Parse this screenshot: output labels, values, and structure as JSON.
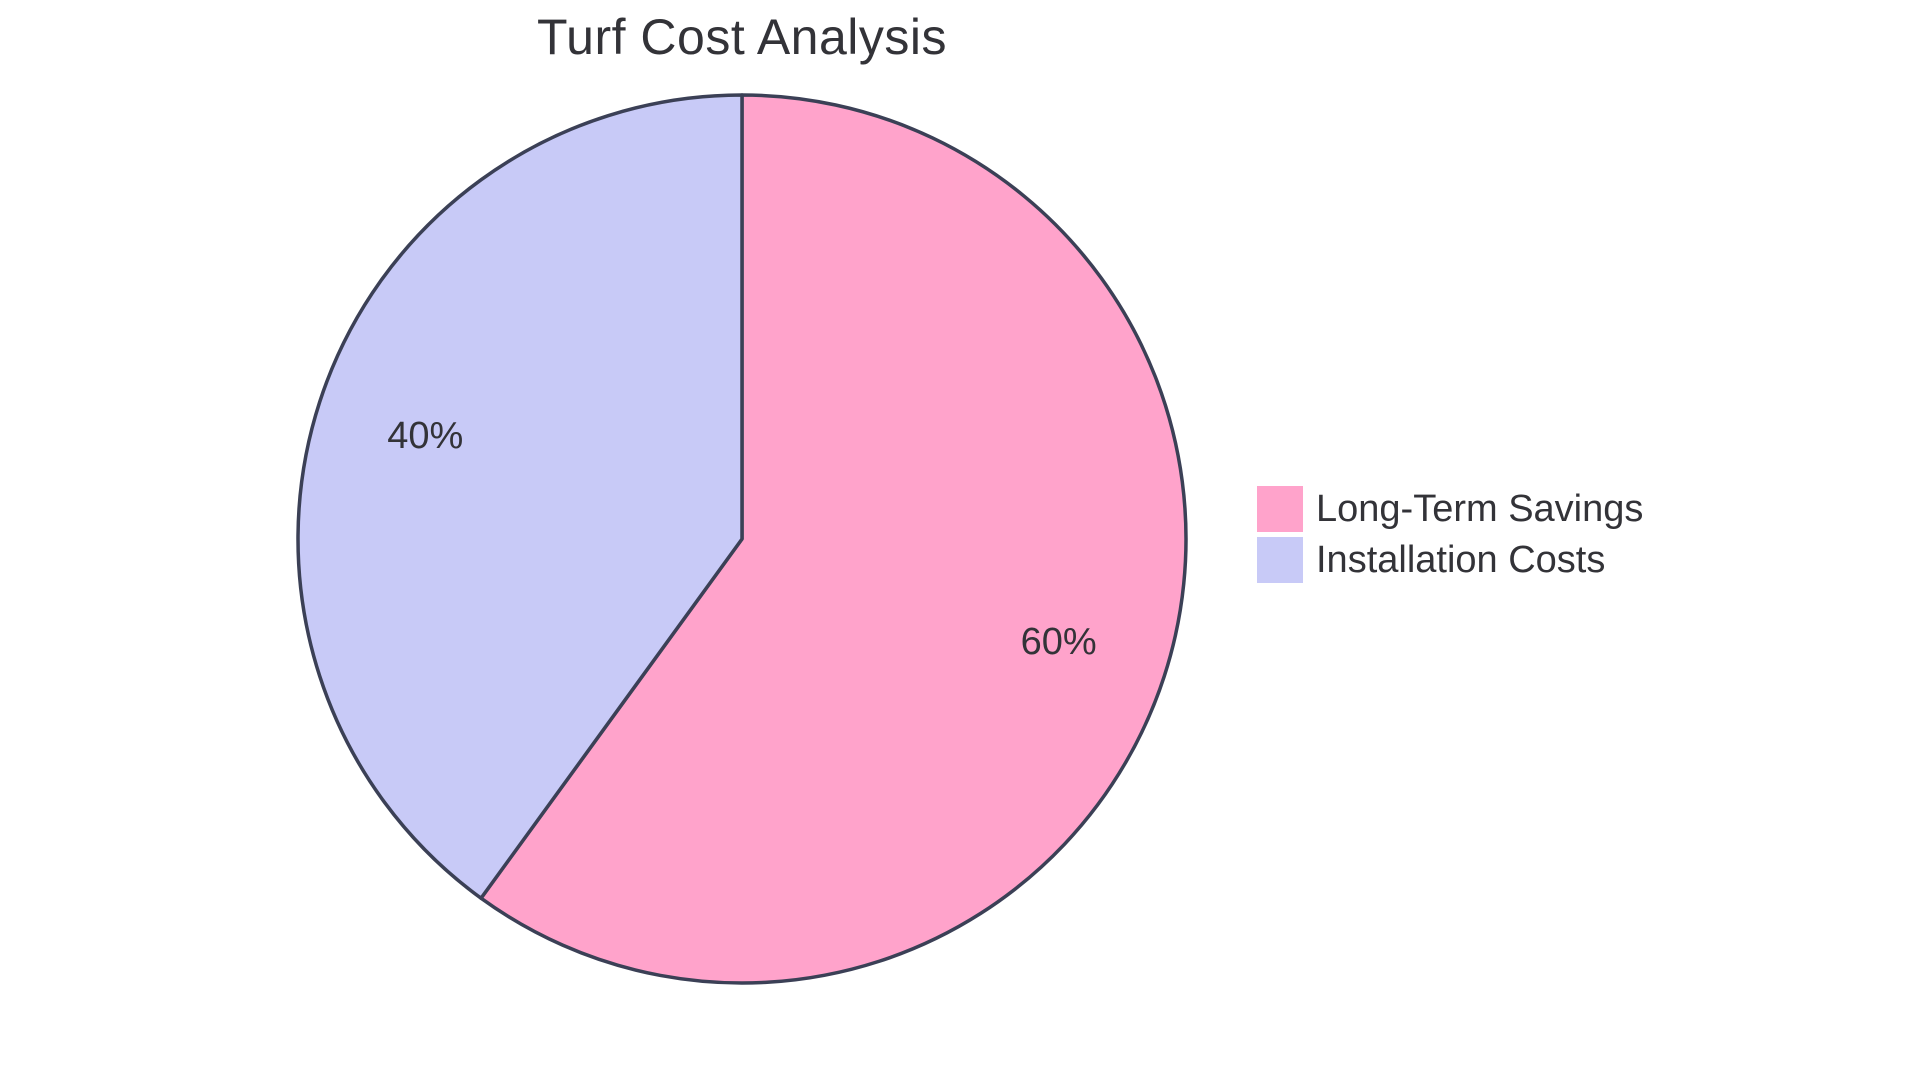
{
  "page": {
    "background": "#FFFFFF"
  },
  "chart_data": {
    "type": "pie",
    "title": "Turf Cost Analysis",
    "labels": [
      "Long-Term Savings",
      "Installation Costs"
    ],
    "values": [
      60,
      40
    ],
    "slice_label_texts": [
      "60%",
      "40%"
    ],
    "colors": [
      "#FFA3CB",
      "#C8CAF7"
    ],
    "slice_border_color": "#3B4056",
    "text_color": "#333338",
    "legend_position": "right",
    "start_angle_deg": 0,
    "direction": "clockwise"
  }
}
